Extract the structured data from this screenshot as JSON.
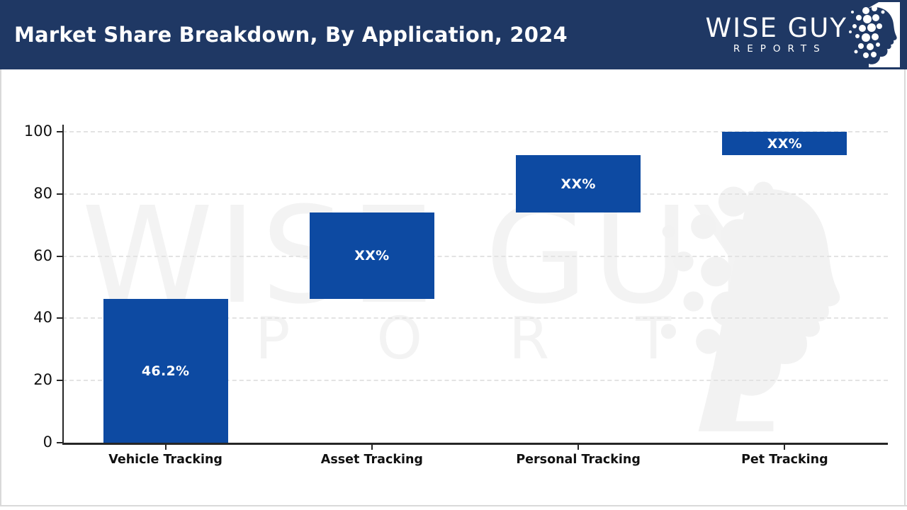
{
  "header": {
    "title": "Market Share Breakdown, By Application, 2024",
    "bg_color": "#1f3864",
    "logo": {
      "line1": "WISE GUY",
      "line2": "REPORTS",
      "head_icon": "dotted-head-profile"
    }
  },
  "watermark": {
    "line1": "WISE GUY",
    "line2": "P O R T S",
    "head_icon": "dotted-head-profile",
    "color": "#f3f3f3"
  },
  "chart_data": {
    "type": "bar",
    "subtype": "waterfall",
    "title": "Market Share Breakdown, By Application, 2024",
    "categories": [
      "Vehicle Tracking",
      "Asset Tracking",
      "Personal Tracking",
      "Pet Tracking"
    ],
    "segments": [
      {
        "category": "Vehicle Tracking",
        "start": 0,
        "end": 46.2,
        "label": "46.2%"
      },
      {
        "category": "Asset Tracking",
        "start": 46.2,
        "end": 74.0,
        "label": "XX%"
      },
      {
        "category": "Personal Tracking",
        "start": 74.0,
        "end": 92.4,
        "label": "XX%"
      },
      {
        "category": "Pet Tracking",
        "start": 92.4,
        "end": 100,
        "label": "XX%"
      }
    ],
    "y_ticks": [
      0,
      20,
      40,
      60,
      80,
      100
    ],
    "ylim": [
      0,
      100
    ],
    "xlabel": "",
    "ylabel": "",
    "bar_color": "#0d4aa2",
    "grid": "horizontal-dashed",
    "legend": "none"
  }
}
